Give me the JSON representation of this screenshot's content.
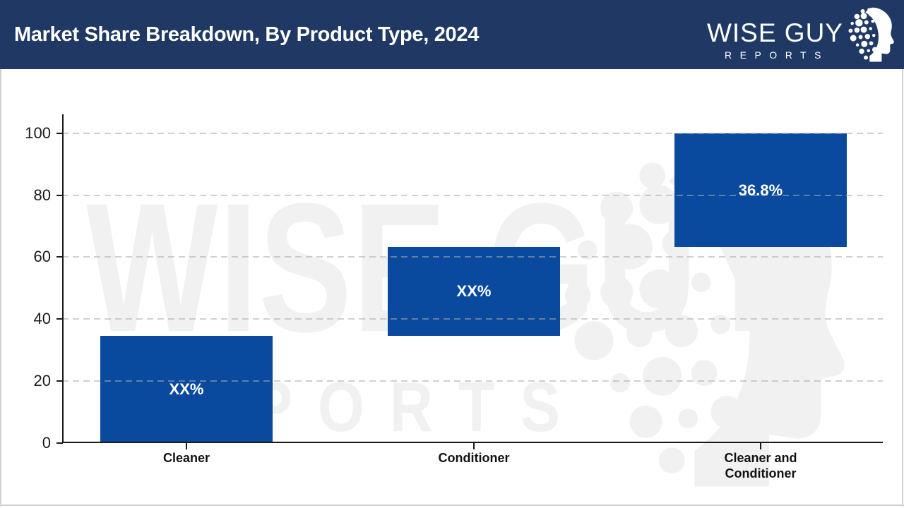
{
  "header": {
    "title": "Market Share Breakdown, By Product Type, 2024",
    "logo": {
      "line1": "WISE GUY",
      "line2": "REPORTS"
    }
  },
  "watermark": {
    "line1": "WISE GUY",
    "line2": "REPORTS"
  },
  "chart_data": {
    "type": "bar",
    "subtype": "floating-segment breakdown (waterfall-style market share bars)",
    "title": "Market Share Breakdown, By Product Type, 2024",
    "categories": [
      "Cleaner",
      "Conditioner",
      "Cleaner and Conditioner"
    ],
    "segments": [
      {
        "category": "Cleaner",
        "start": 0,
        "end": 34.5,
        "value_label": "XX%"
      },
      {
        "category": "Conditioner",
        "start": 34.5,
        "end": 63.2,
        "value_label": "XX%"
      },
      {
        "category": "Cleaner and Conditioner",
        "start": 63.2,
        "end": 100,
        "value_label": "36.8%"
      }
    ],
    "xlabel": "",
    "ylabel": "",
    "ylim": [
      0,
      100
    ],
    "yticks": [
      "0",
      "20",
      "40",
      "60",
      "80",
      "100"
    ],
    "grid": "horizontal dashed, drawn over bars",
    "legend_position": "none",
    "colors": {
      "bar": "#0a4a9e",
      "bar_label": "#ffffff",
      "header_bg": "#1f3864",
      "header_text": "#ffffff",
      "axis": "#1a1a1a",
      "grid": "#d9d9d9",
      "watermark": "#f1f1f1"
    }
  }
}
